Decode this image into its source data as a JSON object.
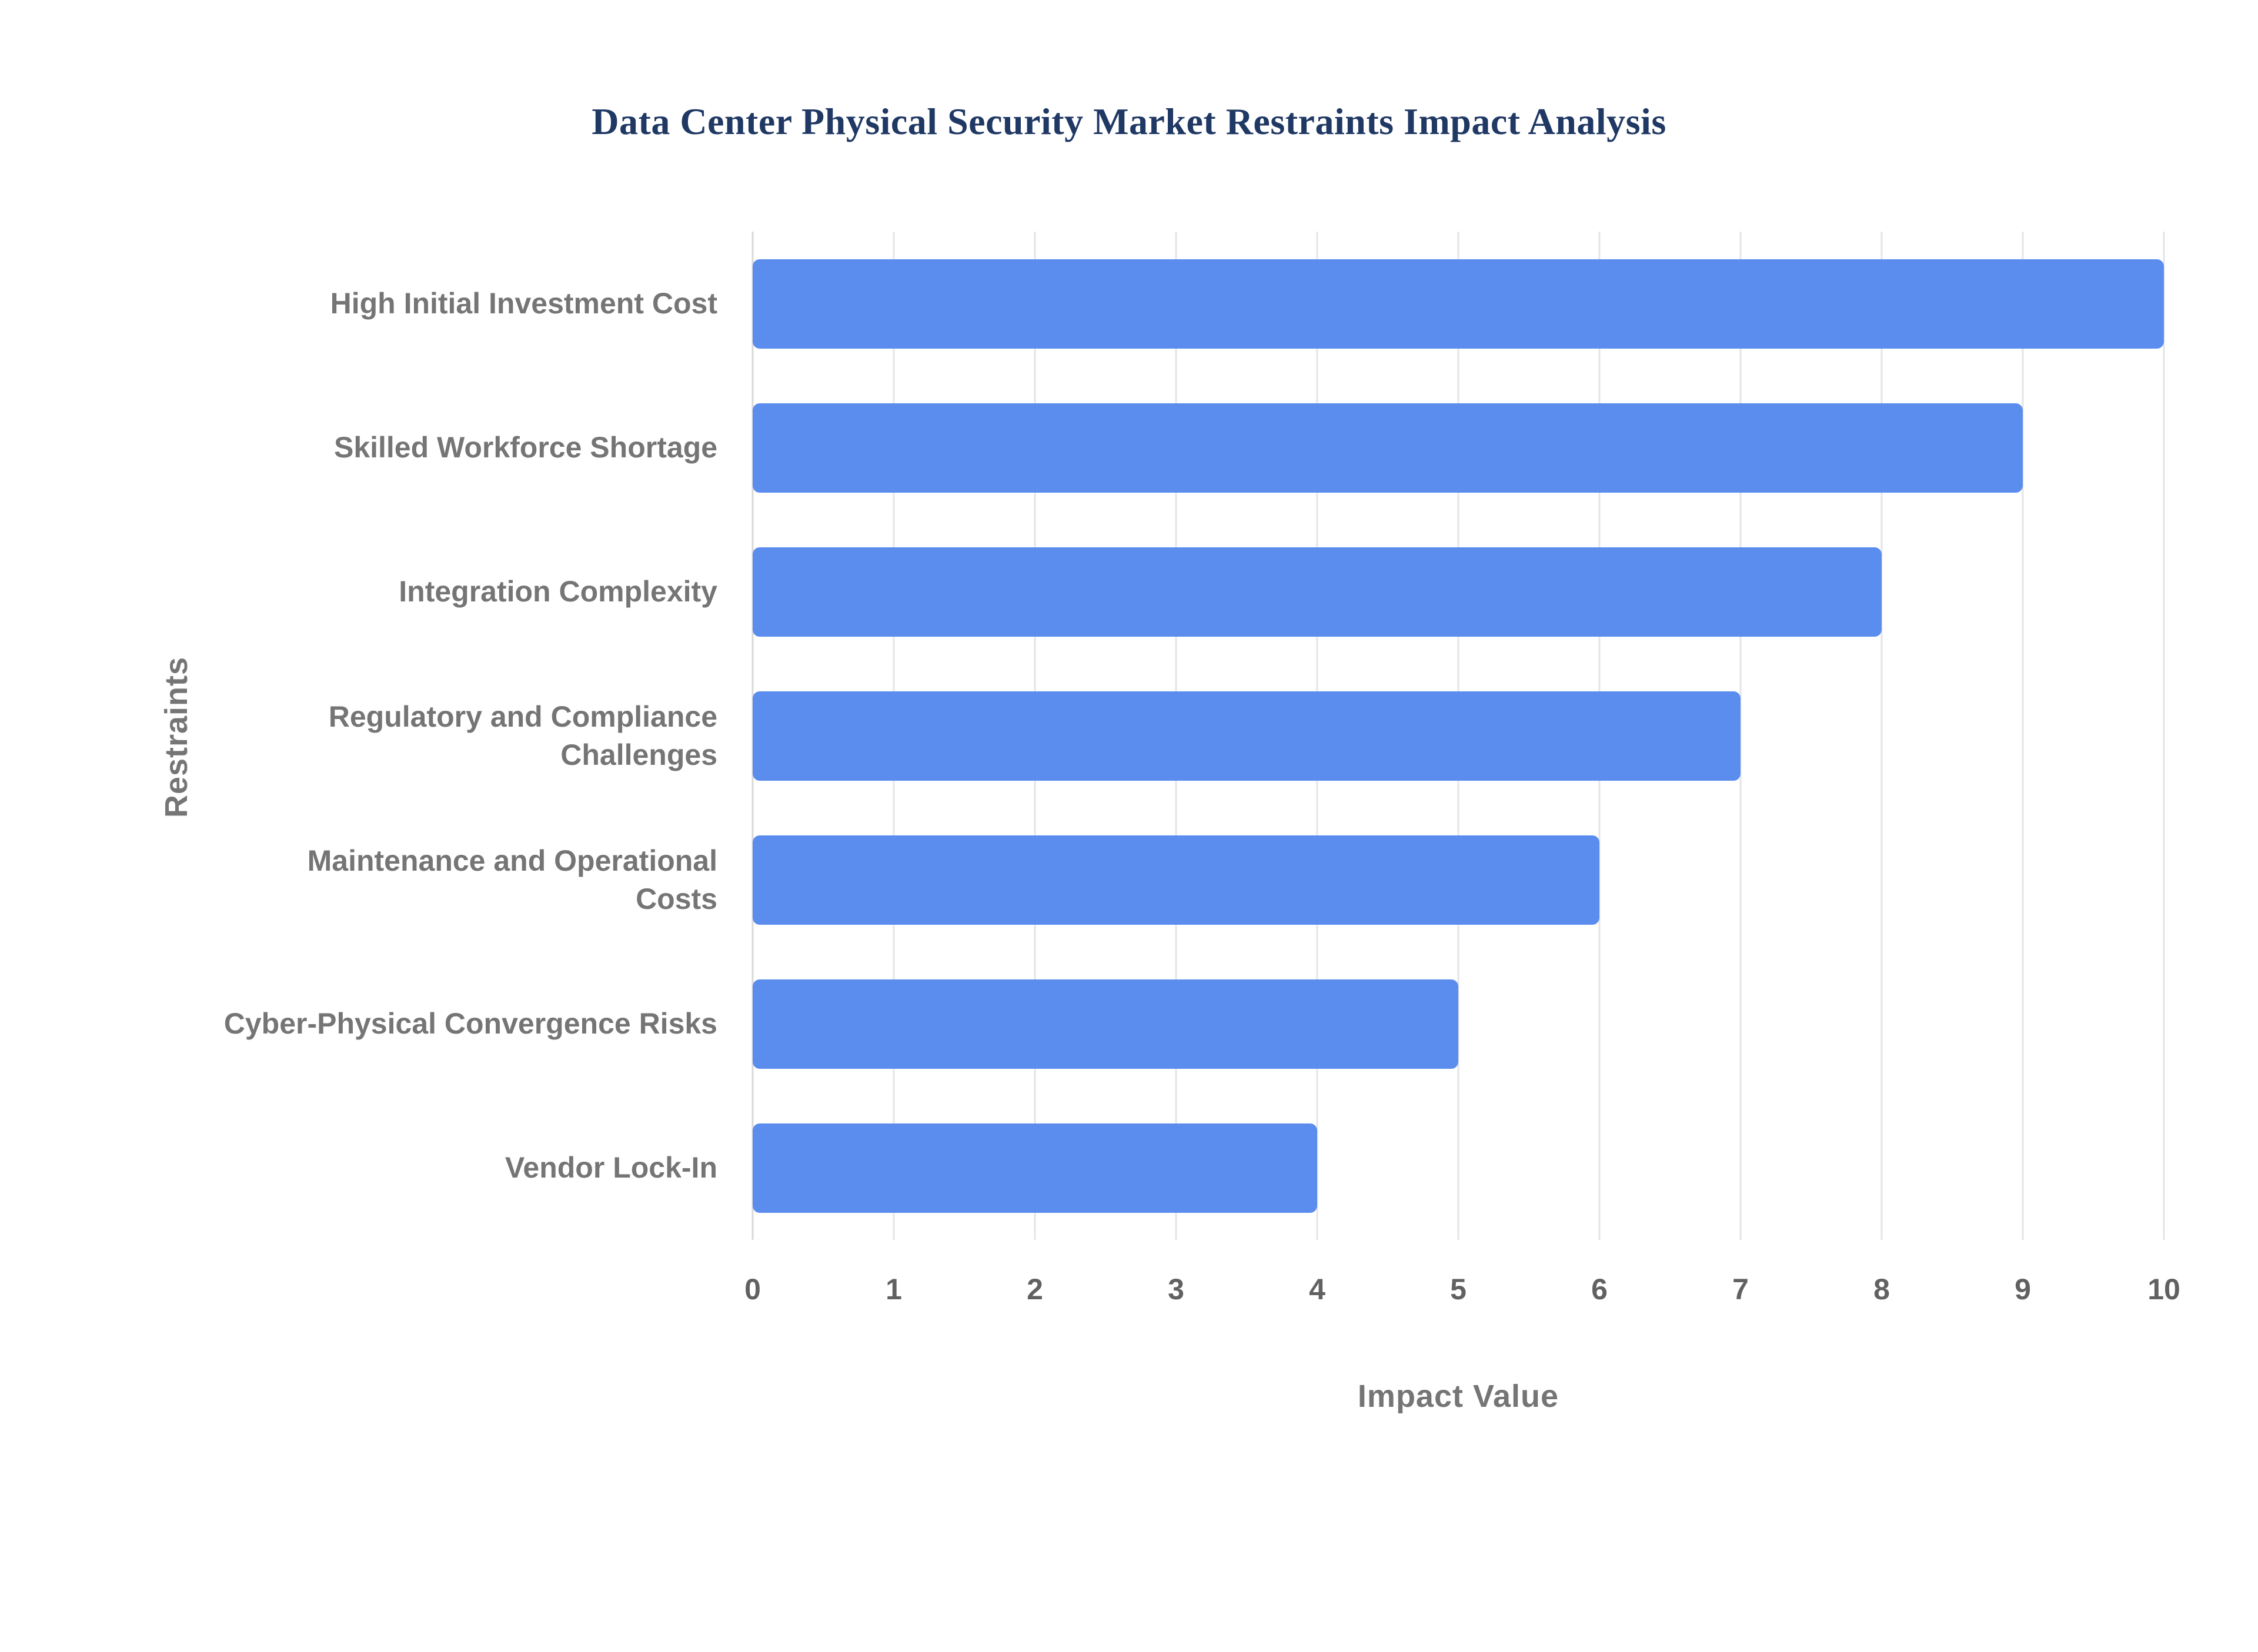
{
  "chart_data": {
    "type": "bar",
    "orientation": "horizontal",
    "title": "Data Center Physical Security Market Restraints Impact Analysis",
    "categories": [
      "High Initial Investment Cost",
      "Skilled Workforce Shortage",
      "Integration Complexity",
      "Regulatory and Compliance Challenges",
      "Maintenance and Operational Costs",
      "Cyber-Physical Convergence Risks",
      "Vendor Lock-In"
    ],
    "values": [
      10,
      9,
      8,
      7,
      6,
      5,
      4
    ],
    "xlabel": "Impact Value",
    "ylabel": "Restraints",
    "xlim": [
      0,
      10
    ],
    "xticks": [
      0,
      1,
      2,
      3,
      4,
      5,
      6,
      7,
      8,
      9,
      10
    ],
    "grid": "vertical",
    "legend": "none",
    "colors": {
      "bar": "#5b8def",
      "title": "#1f3864",
      "axis_title": "#757575",
      "tick_label": "#616161",
      "gridline": "#e4e4e4"
    }
  }
}
